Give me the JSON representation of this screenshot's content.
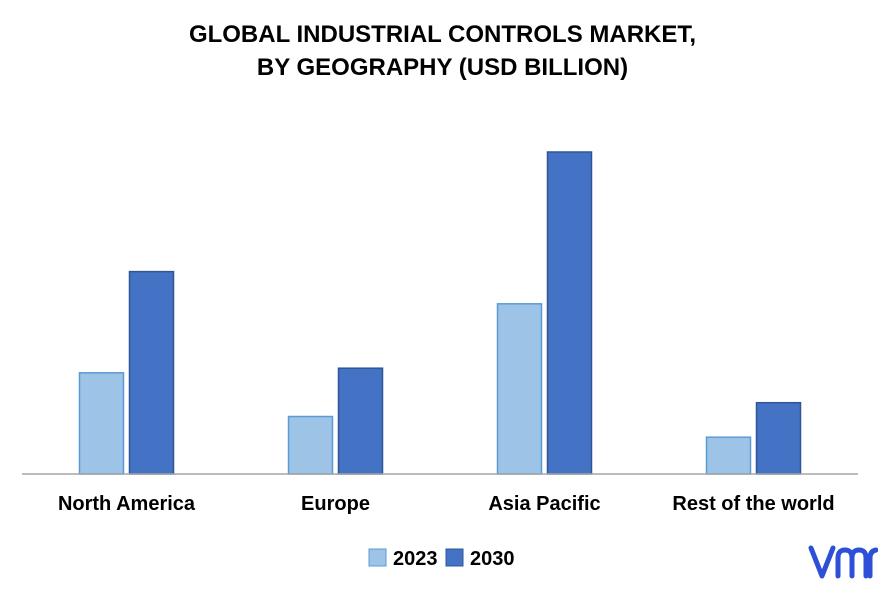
{
  "chart_data": {
    "type": "bar",
    "title_lines": [
      "GLOBAL INDUSTRIAL CONTROLS MARKET,",
      "BY GEOGRAPHY (USD BILLION)"
    ],
    "categories": [
      "North America",
      "Europe",
      "Asia Pacific",
      "Rest of the world"
    ],
    "series": [
      {
        "name": "2023",
        "color": "#9DC3E6",
        "values": [
          44,
          25,
          74,
          16
        ]
      },
      {
        "name": "2030",
        "color": "#4472C4",
        "values": [
          88,
          46,
          140,
          31
        ]
      }
    ],
    "ylim": [
      0,
      140
    ],
    "grid": false,
    "y_axis_visible": false,
    "legend_position": "bottom-center"
  },
  "brand": {
    "logo_icon": "vmr-logo-icon",
    "logo_color": "#2E4FD8"
  }
}
